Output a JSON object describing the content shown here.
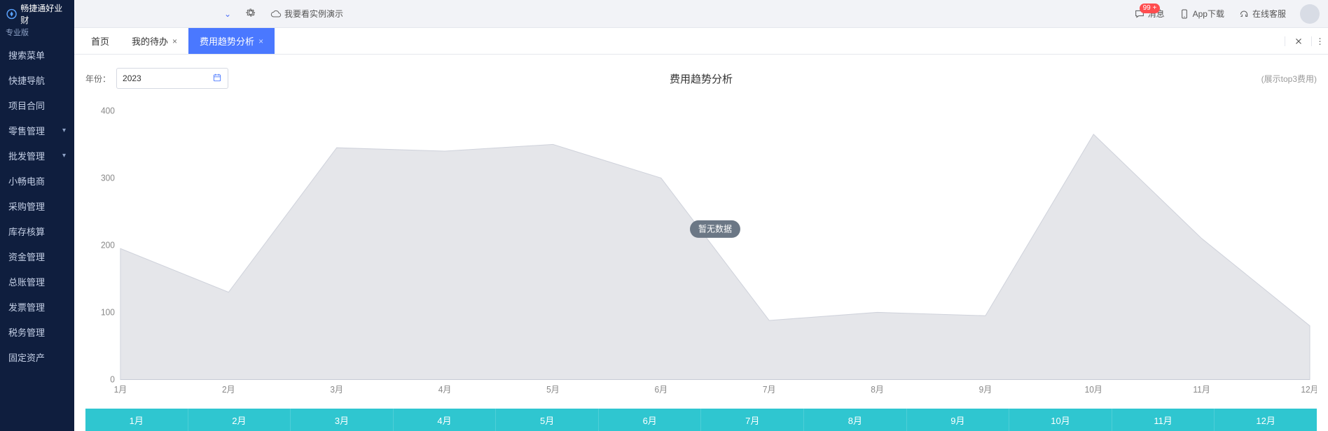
{
  "brand": {
    "name": "畅捷通好业财",
    "edition": "专业版"
  },
  "sidebar": {
    "items": [
      {
        "label": "搜索菜单",
        "expandable": false
      },
      {
        "label": "快捷导航",
        "expandable": false
      },
      {
        "label": "项目合同",
        "expandable": false
      },
      {
        "label": "零售管理",
        "expandable": true
      },
      {
        "label": "批发管理",
        "expandable": true
      },
      {
        "label": "小畅电商",
        "expandable": false
      },
      {
        "label": "采购管理",
        "expandable": false
      },
      {
        "label": "库存核算",
        "expandable": false
      },
      {
        "label": "资金管理",
        "expandable": false
      },
      {
        "label": "总账管理",
        "expandable": false
      },
      {
        "label": "发票管理",
        "expandable": false
      },
      {
        "label": "税务管理",
        "expandable": false
      },
      {
        "label": "固定资产",
        "expandable": false
      }
    ]
  },
  "topbar": {
    "org": "",
    "demo": "我要看实例演示",
    "msg": "消息",
    "msg_badge": "99 +",
    "app": "App下载",
    "cs": "在线客服"
  },
  "tabs": {
    "items": [
      {
        "label": "首页",
        "closable": false,
        "active": false
      },
      {
        "label": "我的待办",
        "closable": true,
        "active": false
      },
      {
        "label": "费用趋势分析",
        "closable": true,
        "active": true
      }
    ]
  },
  "filter": {
    "year_label": "年份：",
    "year_value": "2023"
  },
  "chart": {
    "title": "费用趋势分析",
    "hint": "(展示top3费用)",
    "type": "area",
    "x_labels": [
      "1月",
      "2月",
      "3月",
      "4月",
      "5月",
      "6月",
      "7月",
      "8月",
      "9月",
      "10月",
      "11月",
      "12月"
    ],
    "values": [
      195,
      130,
      345,
      340,
      350,
      300,
      88,
      100,
      95,
      365,
      210,
      80
    ],
    "ylim": [
      0,
      400
    ],
    "ytick_step": 100,
    "area_fill": "#e5e6ea",
    "area_stroke": "#cfd2db",
    "grid_color": "#eceef3",
    "axis_color": "#c8ccd6",
    "label_color": "#888888",
    "background": "#ffffff",
    "tooltip_text": "暂无数据",
    "tooltip_bg": "#6b7785",
    "tooltip_x_ratio": 0.5,
    "tooltip_y_ratio": 0.44
  },
  "month_strip": {
    "items": [
      "1月",
      "2月",
      "3月",
      "4月",
      "5月",
      "6月",
      "7月",
      "8月",
      "9月",
      "10月",
      "11月",
      "12月"
    ],
    "bg": "#2fc6d0"
  }
}
